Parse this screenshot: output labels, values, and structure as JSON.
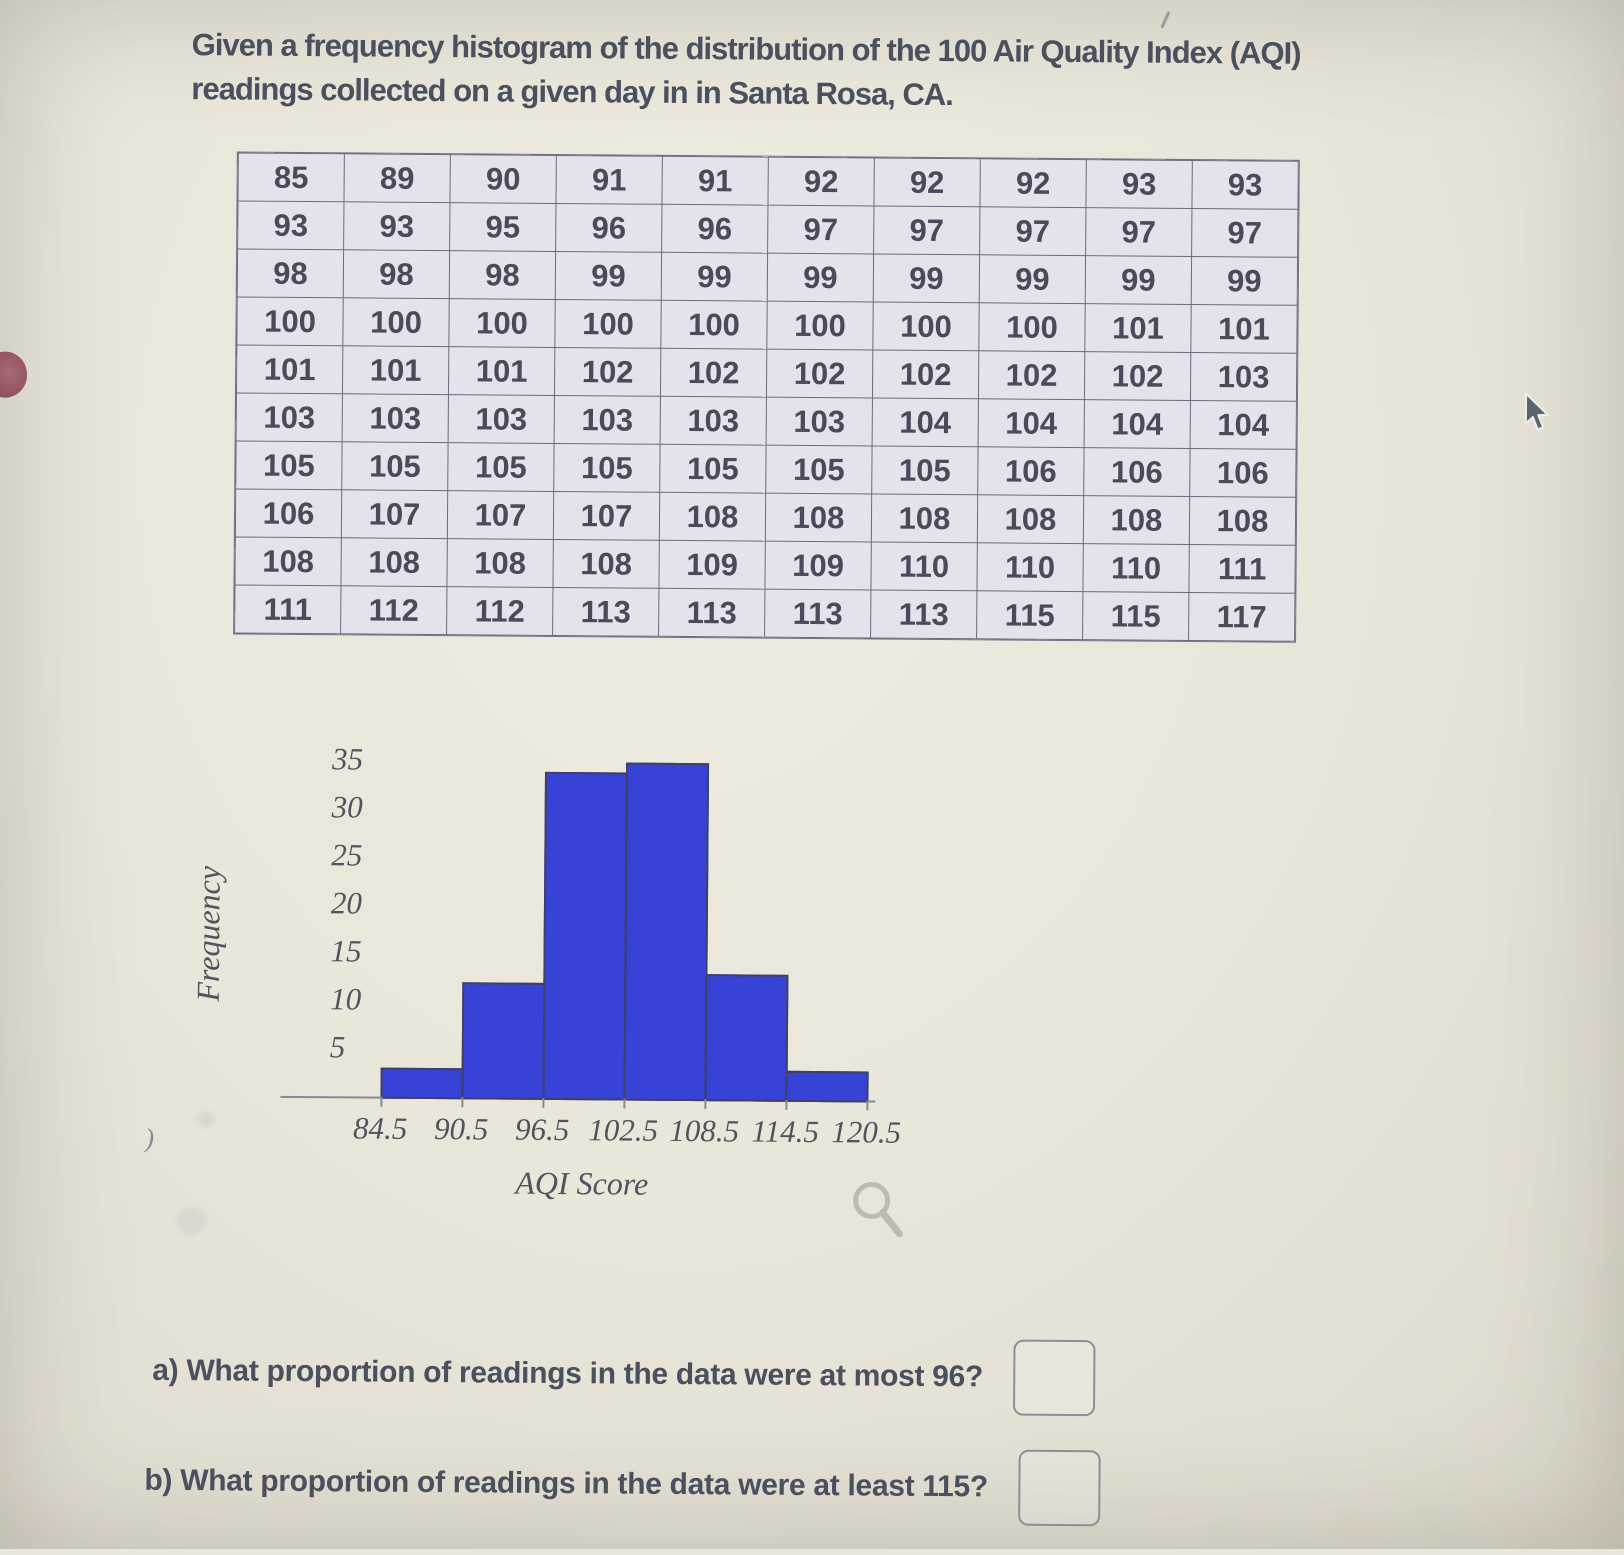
{
  "title": {
    "lines": [
      "Given a frequency histogram of the distribution of the 100 Air Quality Index (AQI)",
      "readings collected on a given day in in Santa Rosa, CA."
    ]
  },
  "table": {
    "rows": [
      [
        85,
        89,
        90,
        91,
        91,
        92,
        92,
        92,
        93,
        93
      ],
      [
        93,
        93,
        95,
        96,
        96,
        97,
        97,
        97,
        97,
        97
      ],
      [
        98,
        98,
        98,
        99,
        99,
        99,
        99,
        99,
        99,
        99
      ],
      [
        100,
        100,
        100,
        100,
        100,
        100,
        100,
        100,
        101,
        101
      ],
      [
        101,
        101,
        101,
        102,
        102,
        102,
        102,
        102,
        102,
        103
      ],
      [
        103,
        103,
        103,
        103,
        103,
        103,
        104,
        104,
        104,
        104
      ],
      [
        105,
        105,
        105,
        105,
        105,
        105,
        105,
        106,
        106,
        106
      ],
      [
        106,
        107,
        107,
        107,
        108,
        108,
        108,
        108,
        108,
        108
      ],
      [
        108,
        108,
        108,
        108,
        109,
        109,
        110,
        110,
        110,
        111
      ],
      [
        111,
        112,
        112,
        113,
        113,
        113,
        113,
        115,
        115,
        117
      ]
    ]
  },
  "chart_data": {
    "type": "bar",
    "subtype": "histogram",
    "xlabel": "AQI Score",
    "ylabel": "Frequency",
    "bin_edges": [
      84.5,
      90.5,
      96.5,
      102.5,
      108.5,
      114.5,
      120.5
    ],
    "frequencies": [
      3,
      12,
      34,
      35,
      13,
      3
    ],
    "x_tick_labels": [
      "84.5",
      "90.5",
      "96.5",
      "102.5",
      "108.5",
      "114.5",
      "120.5"
    ],
    "y_ticks": [
      5,
      10,
      15,
      20,
      25,
      30,
      35
    ],
    "ylim": [
      0,
      37
    ],
    "grid": false,
    "legend": false,
    "bar_color": "#3743d6",
    "bar_border_color": "#413f63"
  },
  "questions": {
    "a": {
      "label": "a) What proportion of readings in the data were at most 96?"
    },
    "b": {
      "label": "b) What proportion of readings in the data were at least 115?"
    }
  },
  "icons": {
    "magnifier": "zoom-search-icon",
    "cursor": "mouse-pointer-icon"
  },
  "colors": {
    "background": "#e9e6db",
    "text": "#4c4f5e",
    "bar": "#3743d6",
    "table_cell": "#e4e2ea",
    "accent_dot": "#9a5b69"
  }
}
